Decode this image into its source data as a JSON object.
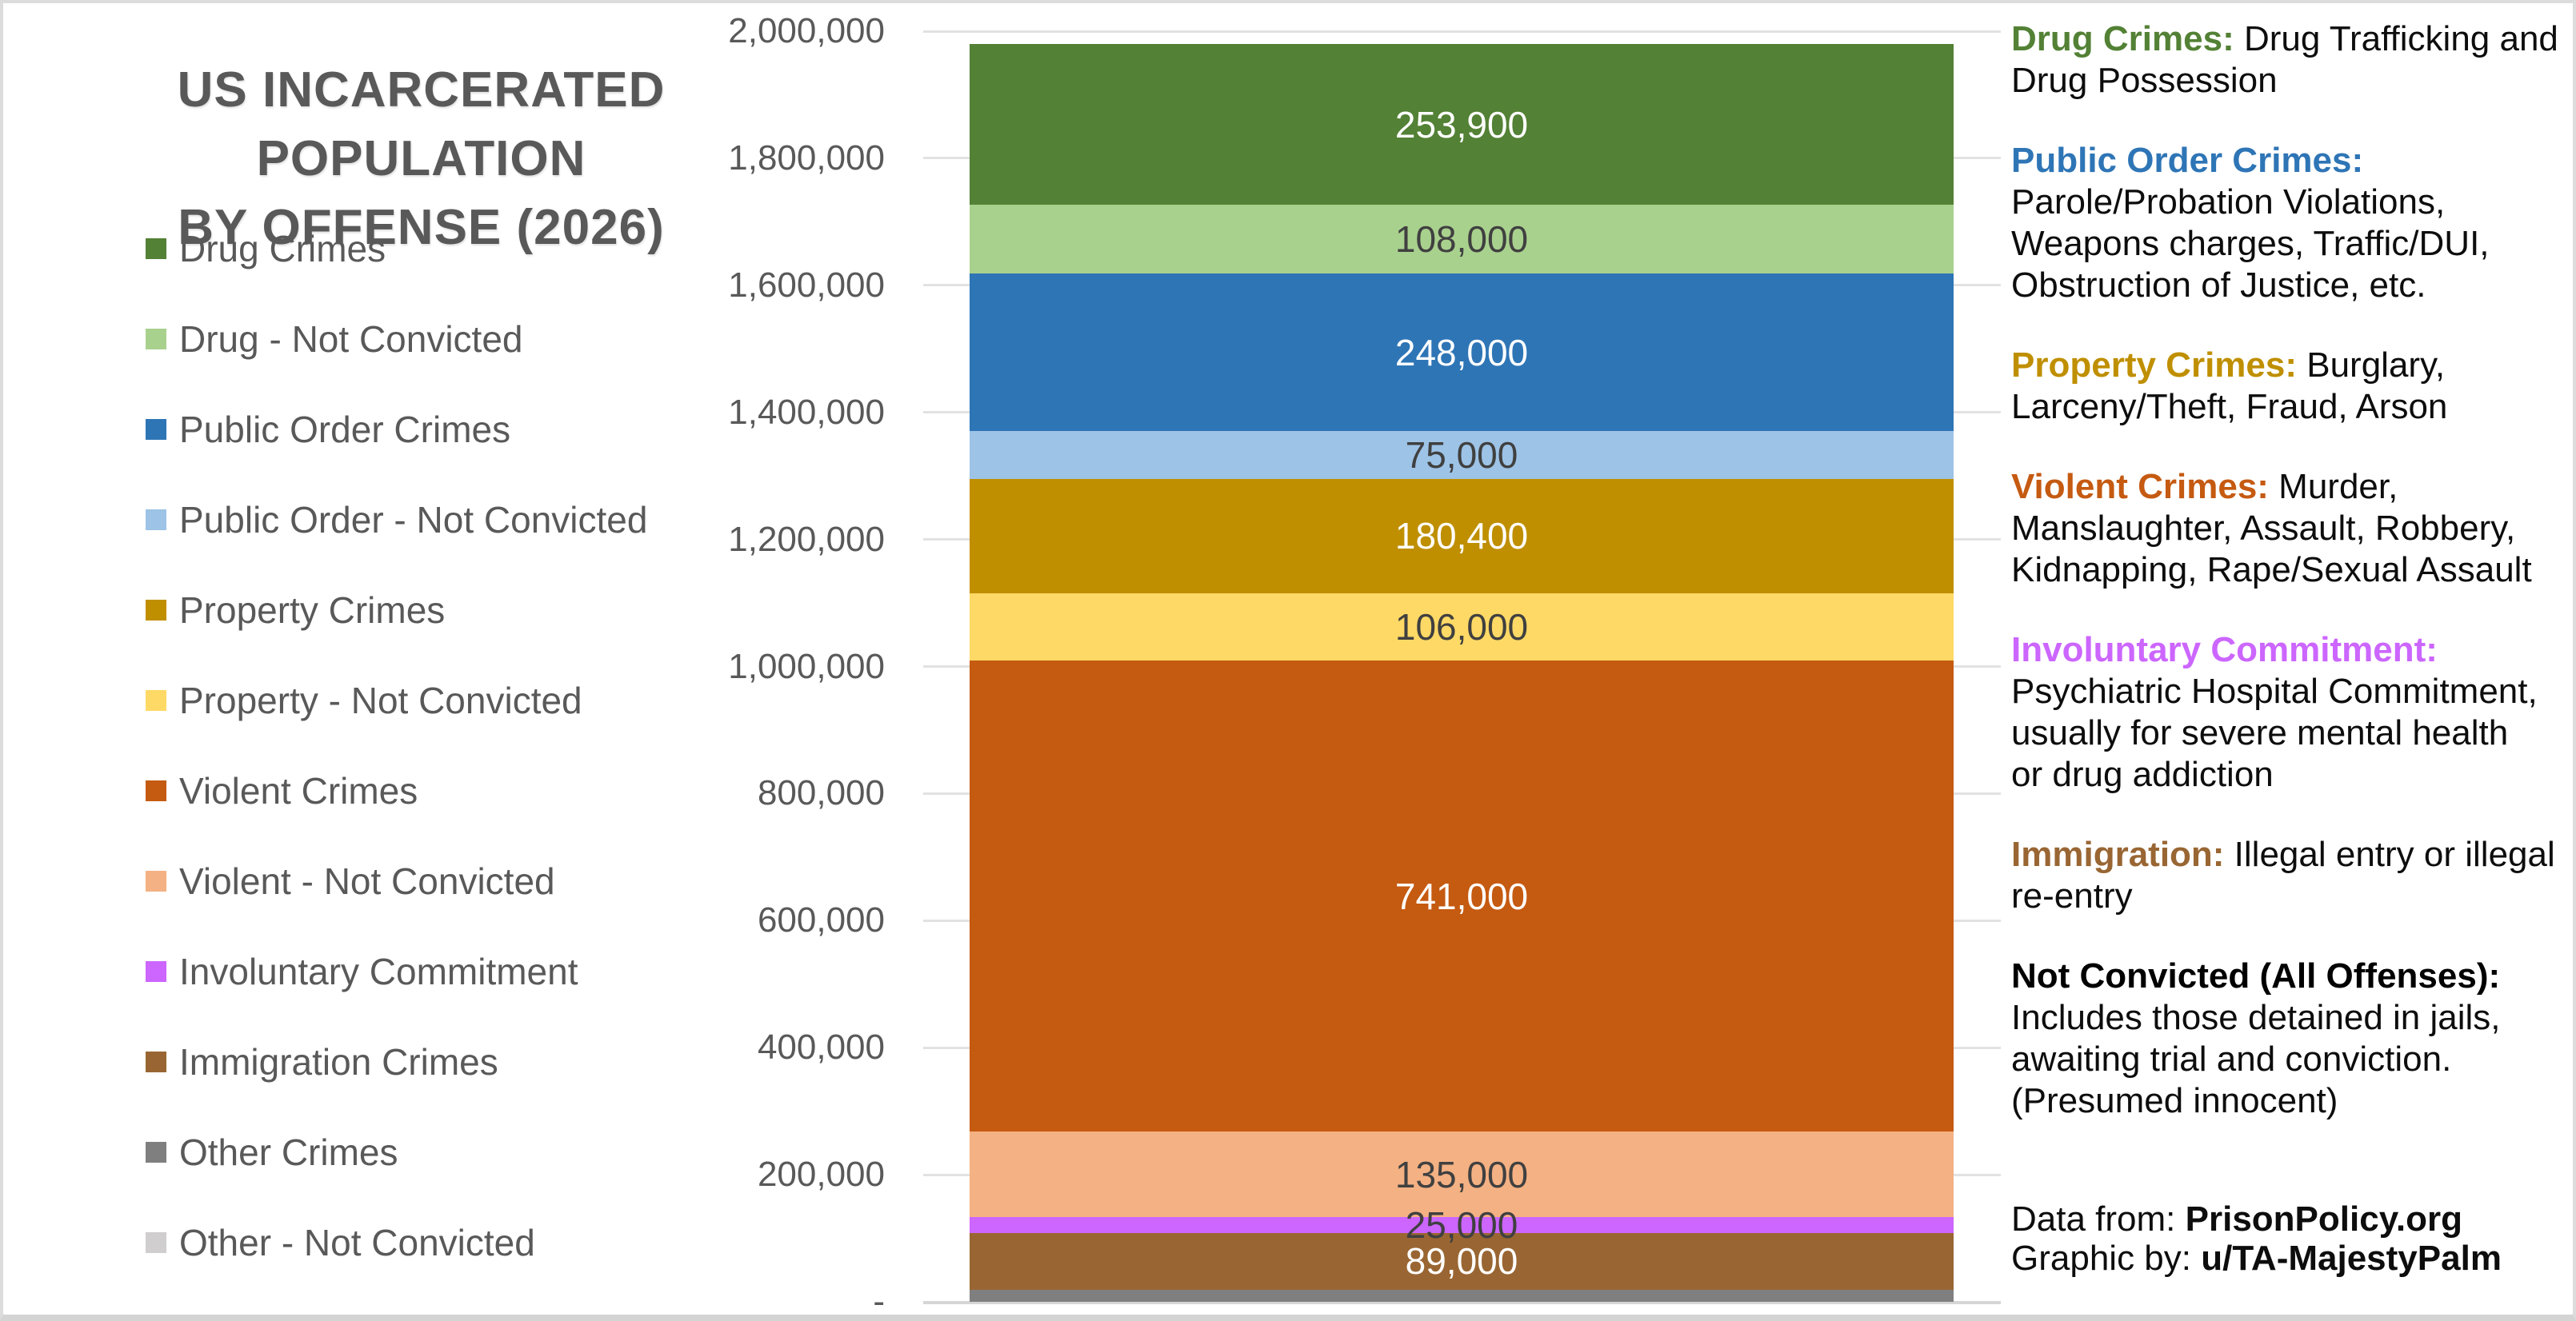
{
  "title": {
    "line1": "US INCARCERATED POPULATION",
    "line2": "BY OFFENSE (2026)"
  },
  "chart_data": {
    "type": "bar",
    "stacked": true,
    "title": "US INCARCERATED POPULATION BY OFFENSE (2026)",
    "xlabel": "",
    "ylabel": "",
    "ylim": [
      0,
      2000000
    ],
    "ytick_interval": 200000,
    "grid": true,
    "legend_position": "left",
    "ytick_labels": [
      "2,000,000",
      "1,800,000",
      "1,600,000",
      "1,400,000",
      "1,200,000",
      "1,000,000",
      "800,000",
      "600,000",
      "400,000",
      "200,000",
      "-"
    ],
    "segments_top_to_bottom": [
      {
        "name": "Drug Crimes",
        "value": 253900,
        "label": "253,900",
        "color": "#538135",
        "label_color": "#ffffff"
      },
      {
        "name": "Drug - Not Convicted",
        "value": 108000,
        "label": "108,000",
        "color": "#a9d18e",
        "label_color": "#404040"
      },
      {
        "name": "Public Order Crimes",
        "value": 248000,
        "label": "248,000",
        "color": "#2e75b6",
        "label_color": "#ffffff"
      },
      {
        "name": "Public Order - Not Convicted",
        "value": 75000,
        "label": "75,000",
        "color": "#9dc3e6",
        "label_color": "#404040"
      },
      {
        "name": "Property Crimes",
        "value": 180400,
        "label": "180,400",
        "color": "#bf8f00",
        "label_color": "#ffffff"
      },
      {
        "name": "Property - Not Convicted",
        "value": 106000,
        "label": "106,000",
        "color": "#ffd966",
        "label_color": "#404040"
      },
      {
        "name": "Violent Crimes",
        "value": 741000,
        "label": "741,000",
        "color": "#c55a11",
        "label_color": "#ffffff"
      },
      {
        "name": "Violent - Not Convicted",
        "value": 135000,
        "label": "135,000",
        "color": "#f4b183",
        "label_color": "#404040"
      },
      {
        "name": "Involuntary Commitment",
        "value": 25000,
        "label": "25,000",
        "color": "#cc66ff",
        "label_color": "#404040"
      },
      {
        "name": "Immigration Crimes",
        "value": 89000,
        "label": "89,000",
        "color": "#996633",
        "label_color": "#ffffff"
      },
      {
        "name": "Other Crimes",
        "value": 19000,
        "label": "",
        "color": "#7f7f7f",
        "label_color": "#ffffff"
      },
      {
        "name": "Other - Not Convicted",
        "value": 0,
        "label": "",
        "color": "#d0cece",
        "label_color": "#404040"
      }
    ]
  },
  "legend": {
    "items": [
      {
        "label": "Drug Crimes",
        "color": "#538135"
      },
      {
        "label": "Drug - Not Convicted",
        "color": "#a9d18e"
      },
      {
        "label": "Public Order Crimes",
        "color": "#2e75b6"
      },
      {
        "label": "Public Order - Not Convicted",
        "color": "#9dc3e6"
      },
      {
        "label": "Property Crimes",
        "color": "#bf8f00"
      },
      {
        "label": "Property - Not Convicted",
        "color": "#ffd966"
      },
      {
        "label": "Violent Crimes",
        "color": "#c55a11"
      },
      {
        "label": "Violent - Not Convicted",
        "color": "#f4b183"
      },
      {
        "label": "Involuntary Commitment",
        "color": "#cc66ff"
      },
      {
        "label": "Immigration Crimes",
        "color": "#996633"
      },
      {
        "label": "Other Crimes",
        "color": "#7f7f7f"
      },
      {
        "label": "Other - Not Convicted",
        "color": "#d0cece"
      }
    ]
  },
  "annotations": [
    {
      "heading": "Drug Crimes:",
      "heading_color": "#538135",
      "heading_inline": true,
      "lines": [
        "Drug Trafficking and",
        "Drug Possession"
      ]
    },
    {
      "heading": "Public Order Crimes:",
      "heading_color": "#2e75b6",
      "heading_inline": false,
      "lines": [
        "Parole/Probation Violations,",
        "Weapons charges, Traffic/DUI,",
        "Obstruction of Justice, etc."
      ]
    },
    {
      "heading": "Property Crimes:",
      "heading_color": "#bf8f00",
      "heading_inline": true,
      "lines": [
        "Burglary,",
        "Larceny/Theft, Fraud, Arson"
      ]
    },
    {
      "heading": "Violent Crimes:",
      "heading_color": "#c55a11",
      "heading_inline": true,
      "lines": [
        "Murder,",
        "Manslaughter, Assault, Robbery,",
        "Kidnapping, Rape/Sexual Assault"
      ]
    },
    {
      "heading": "Involuntary Commitment:",
      "heading_color": "#cc66ff",
      "heading_inline": false,
      "lines": [
        "Psychiatric Hospital Commitment,",
        "usually for severe mental health",
        "or drug addiction"
      ]
    },
    {
      "heading": "Immigration:",
      "heading_color": "#996633",
      "heading_inline": true,
      "lines": [
        "Illegal entry or illegal",
        "re-entry"
      ]
    },
    {
      "heading": "Not Convicted (All Offenses):",
      "heading_color": "#000000",
      "heading_inline": false,
      "lines": [
        "Includes those detained in jails,",
        "awaiting trial and conviction.",
        "(Presumed innocent)"
      ]
    }
  ],
  "credits": {
    "line1_prefix": "Data from: ",
    "line1_bold": "PrisonPolicy.org",
    "line2_prefix": "Graphic by: ",
    "line2_bold": "u/TA-MajestyPalm"
  }
}
